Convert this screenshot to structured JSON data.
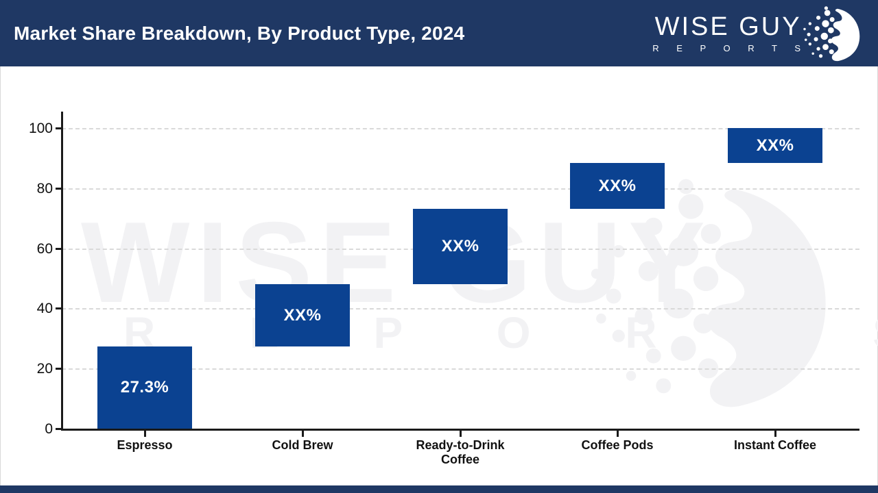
{
  "header": {
    "title": "Market Share Breakdown, By Product Type, 2024",
    "logo": {
      "line1": "WISE GUY",
      "line2": "REPORTS"
    }
  },
  "watermark": {
    "line1": "WISE GUY",
    "line2": "REPORTS"
  },
  "colors": {
    "header_bg": "#1f3864",
    "bar": "#0b4291",
    "bar_label": "#ffffff",
    "grid": "#d9d9d9",
    "axis": "#1a1a1a",
    "watermark": "#f2f2f4"
  },
  "chart_data": {
    "type": "bar",
    "subtype": "waterfall-step",
    "title": "Market Share Breakdown, By Product Type, 2024",
    "categories": [
      "Espresso",
      "Cold Brew",
      "Ready-to-Drink Coffee",
      "Coffee Pods",
      "Instant Coffee"
    ],
    "category_label_lines": [
      [
        "Espresso"
      ],
      [
        "Cold Brew"
      ],
      [
        "Ready-to-Drink",
        "Coffee"
      ],
      [
        "Coffee Pods"
      ],
      [
        "Instant Coffee"
      ]
    ],
    "bar_labels": [
      "27.3%",
      "XX%",
      "XX%",
      "XX%",
      "XX%"
    ],
    "bar_start": [
      0,
      27.3,
      48.1,
      73.1,
      88.4
    ],
    "bar_end": [
      27.3,
      48.1,
      73.1,
      88.4,
      100
    ],
    "values": [
      27.3,
      20.8,
      25.0,
      15.3,
      11.6
    ],
    "xlabel": "",
    "ylabel": "",
    "ylim": [
      0,
      100
    ],
    "yticks": [
      0,
      20,
      40,
      60,
      80,
      100
    ],
    "grid": "horizontal-dashed",
    "legend": "none"
  }
}
